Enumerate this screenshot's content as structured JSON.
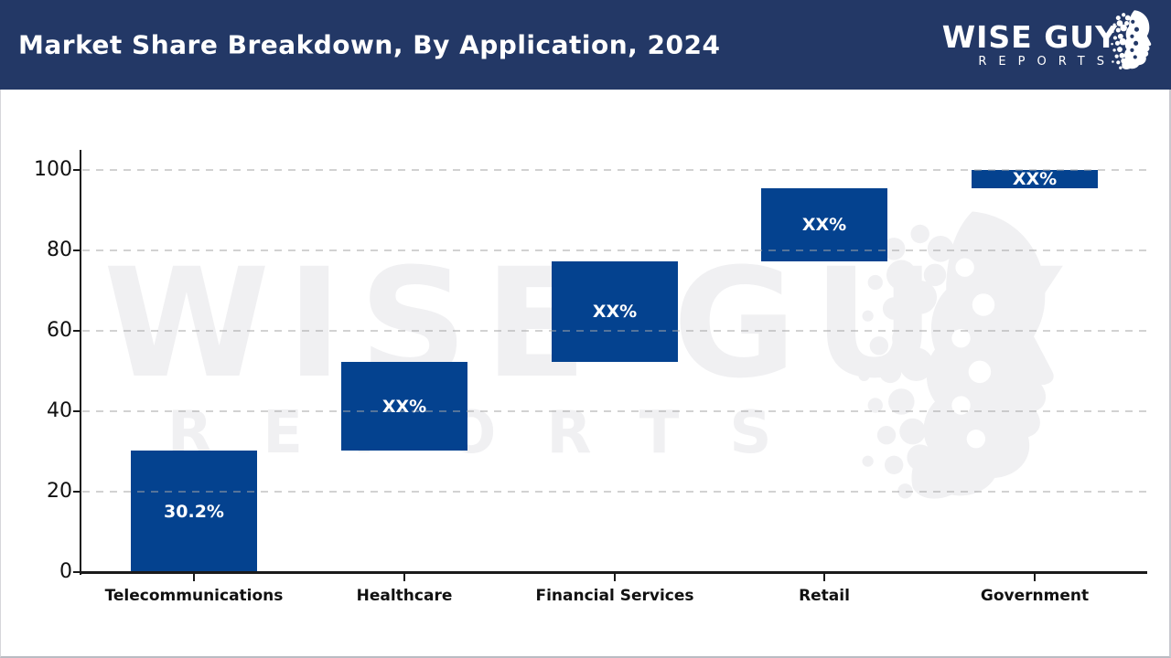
{
  "header": {
    "title": "Market Share Breakdown, By Application, 2024",
    "bg_color": "#233866",
    "logo": {
      "wordmark": "WISE GUY",
      "subtext": "REPORTS"
    }
  },
  "watermark": {
    "wordmark": "WISE GUY",
    "subtext": "REPORTS"
  },
  "chart_data": {
    "type": "bar",
    "subtype": "floating-waterfall",
    "title": "Market Share Breakdown, By Application, 2024",
    "categories": [
      "Telecommunications",
      "Healthcare",
      "Financial Services",
      "Retail",
      "Government"
    ],
    "segments": [
      {
        "category": "Telecommunications",
        "start": 0,
        "end": 30.2,
        "label": "30.2%"
      },
      {
        "category": "Healthcare",
        "start": 30.2,
        "end": 52.3,
        "label": "XX%"
      },
      {
        "category": "Financial Services",
        "start": 52.3,
        "end": 77.3,
        "label": "XX%"
      },
      {
        "category": "Retail",
        "start": 77.3,
        "end": 95.5,
        "label": "XX%"
      },
      {
        "category": "Government",
        "start": 95.5,
        "end": 100,
        "label": "XX%"
      }
    ],
    "yticks": [
      0,
      20,
      40,
      60,
      80,
      100
    ],
    "ylim": [
      0,
      105
    ],
    "xlabel": "",
    "ylabel": "",
    "grid": {
      "horizontal": true,
      "style": "dashed"
    },
    "legend": null,
    "bar_color": "#04428f",
    "bar_label_color": "#ffffff",
    "axis_color": "#1a1a1a"
  }
}
